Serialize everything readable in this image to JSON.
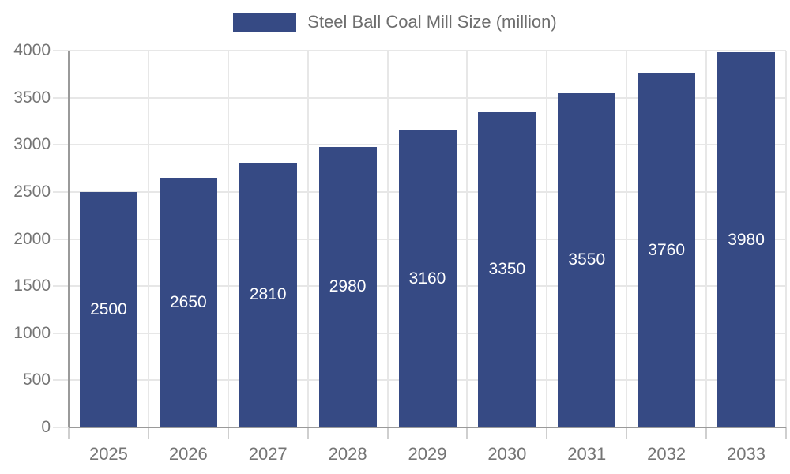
{
  "chart_data": {
    "type": "bar",
    "title": "Steel Ball Coal Mill Size (million)",
    "legend_position": "top",
    "categories": [
      "2025",
      "2026",
      "2027",
      "2028",
      "2029",
      "2030",
      "2031",
      "2032",
      "2033"
    ],
    "values": [
      2500,
      2650,
      2810,
      2980,
      3160,
      3350,
      3550,
      3760,
      3980
    ],
    "bar_value_labels": [
      "2500",
      "2650",
      "2810",
      "2980",
      "3160",
      "3350",
      "3550",
      "3760",
      "3980"
    ],
    "xlabel": "",
    "ylabel": "",
    "ylim": [
      0,
      4000
    ],
    "yticks": [
      0,
      500,
      1000,
      1500,
      2000,
      2500,
      3000,
      3500,
      4000
    ],
    "grid": true,
    "colors": {
      "bar": "#364a84",
      "grid": "#e7e7e7",
      "axis": "#9a9a9a",
      "minor_tick": "#cfcfcf",
      "tick_text": "#757575",
      "legend_text": "#6e6e6e",
      "value_text": "#ffffff",
      "background": "#ffffff"
    }
  }
}
